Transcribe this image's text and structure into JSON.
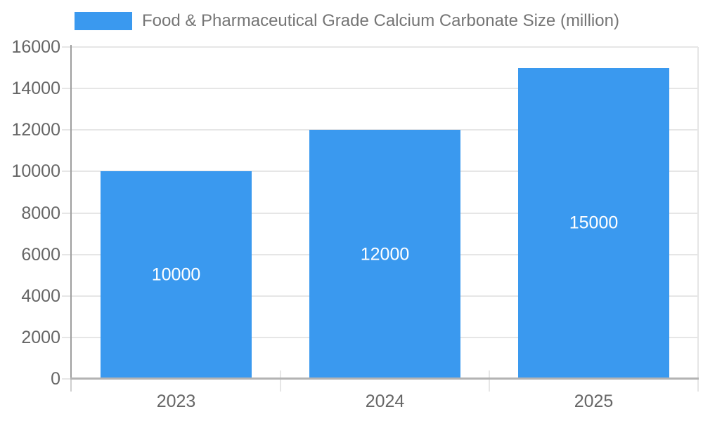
{
  "chart": {
    "legend_label": "Food & Pharmaceutical Grade Calcium Carbonate Size (million)"
  },
  "chart_data": {
    "type": "bar",
    "title": "",
    "xlabel": "",
    "ylabel": "",
    "categories": [
      "2023",
      "2024",
      "2025"
    ],
    "series": [
      {
        "name": "Food & Pharmaceutical Grade Calcium Carbonate Size (million)",
        "values": [
          10000,
          12000,
          15000
        ]
      }
    ],
    "data_labels": [
      "10000",
      "12000",
      "15000"
    ],
    "ylim": [
      0,
      16000
    ],
    "y_ticks": [
      0,
      2000,
      4000,
      6000,
      8000,
      10000,
      12000,
      14000,
      16000
    ],
    "grid": true,
    "legend_position": "top",
    "colors": {
      "bar": "#3A99EF",
      "grid": "#E6E6E6",
      "axis_line": "#9E9E9E",
      "baseline": "#B3B3B3",
      "tick_label": "#666666",
      "legend_text": "#757575",
      "data_label": "#FFFFFF",
      "background": "#FFFFFF"
    }
  }
}
